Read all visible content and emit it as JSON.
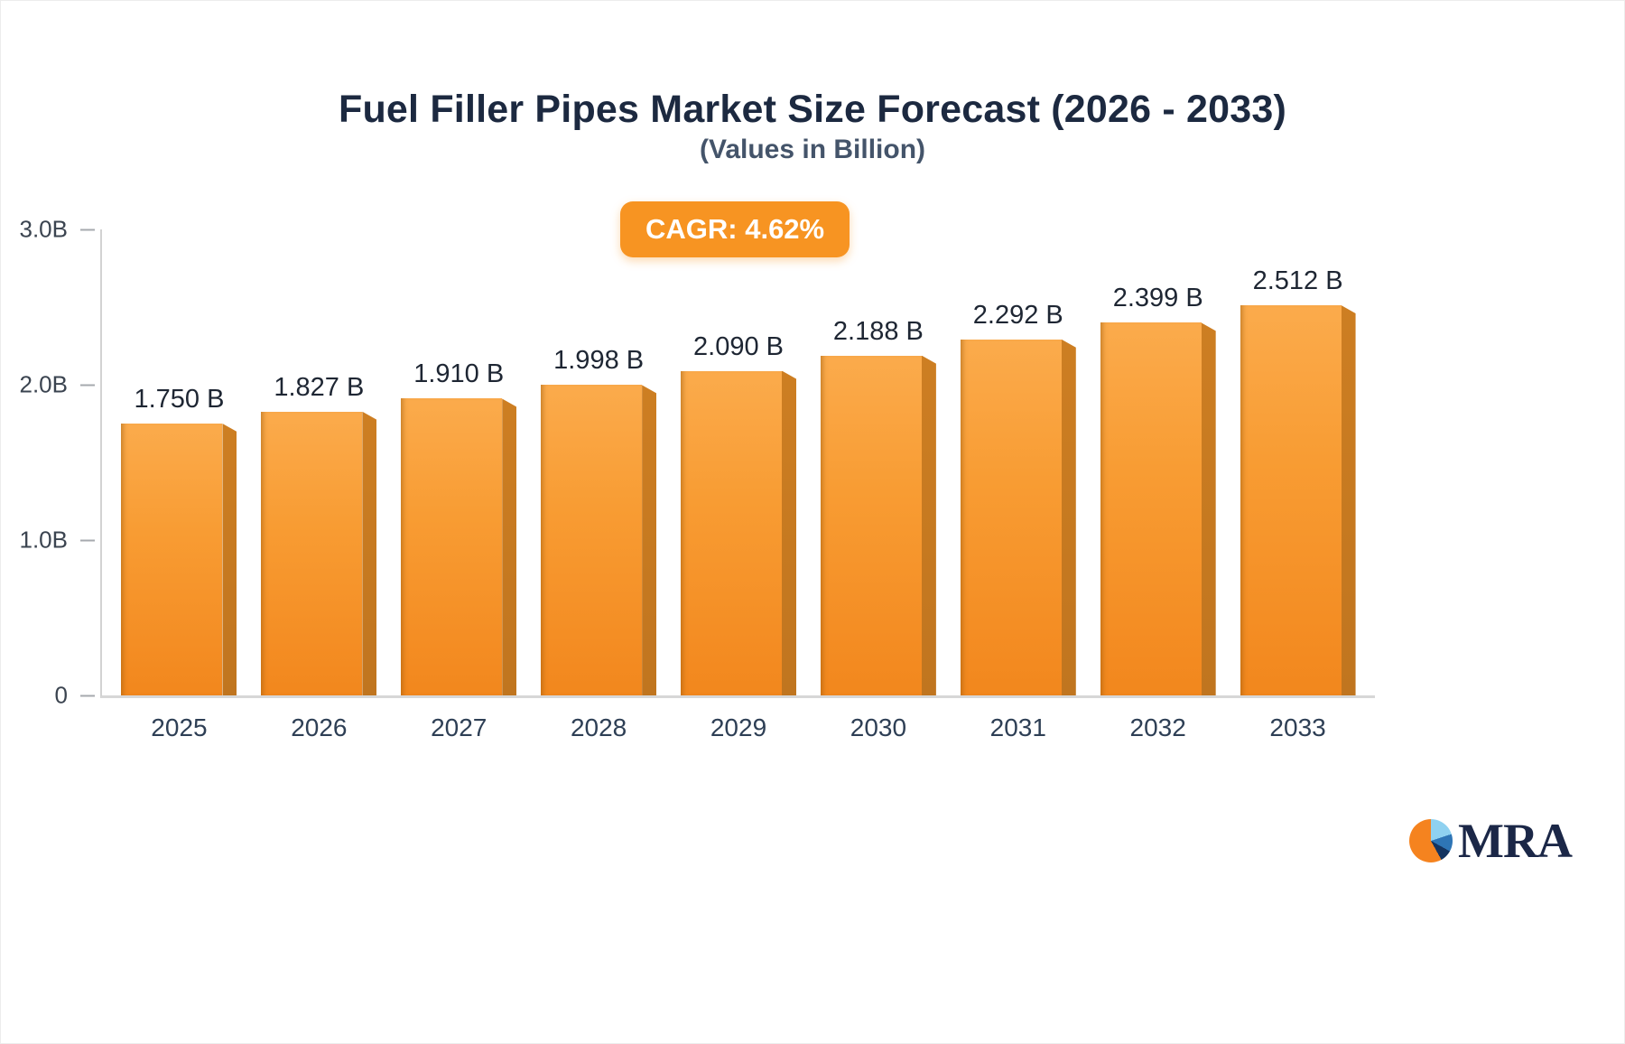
{
  "header": {
    "title": "Fuel Filler Pipes Market Size Forecast (2026 - 2033)",
    "subtitle": "(Values in Billion)",
    "cagr_label": "CAGR: 4.62%"
  },
  "branding": {
    "logo_text": "MRA",
    "logo_colors": {
      "orange": "#f5831f",
      "navy": "#14335f",
      "light_blue": "#8fd1f0",
      "blue": "#2e75b6"
    }
  },
  "colors": {
    "bar_top": "#fbab4c",
    "bar_bottom": "#f2871d",
    "bar_side": "#c0751f",
    "badge": "#f79422",
    "title_text": "#1c2940",
    "subtitle_text": "#44546a"
  },
  "chart_data": {
    "type": "bar",
    "title": "Fuel Filler Pipes Market Size Forecast (2026 - 2033)",
    "subtitle": "(Values in Billion)",
    "xlabel": "",
    "ylabel": "",
    "ylim": [
      0,
      3
    ],
    "grid": false,
    "legend": "none",
    "cagr": "4.62%",
    "categories": [
      "2025",
      "2026",
      "2027",
      "2028",
      "2029",
      "2030",
      "2031",
      "2032",
      "2033"
    ],
    "values": [
      1.75,
      1.827,
      1.91,
      1.998,
      2.09,
      2.188,
      2.292,
      2.399,
      2.512
    ],
    "value_labels": [
      "1.750 B",
      "1.827 B",
      "1.910 B",
      "1.998 B",
      "2.090 B",
      "2.188 B",
      "2.292 B",
      "2.399 B",
      "2.512 B"
    ],
    "y_ticks": [
      {
        "value": 0,
        "label": "0"
      },
      {
        "value": 1,
        "label": "1.0B"
      },
      {
        "value": 2,
        "label": "2.0B"
      },
      {
        "value": 3,
        "label": "3.0B"
      }
    ]
  }
}
